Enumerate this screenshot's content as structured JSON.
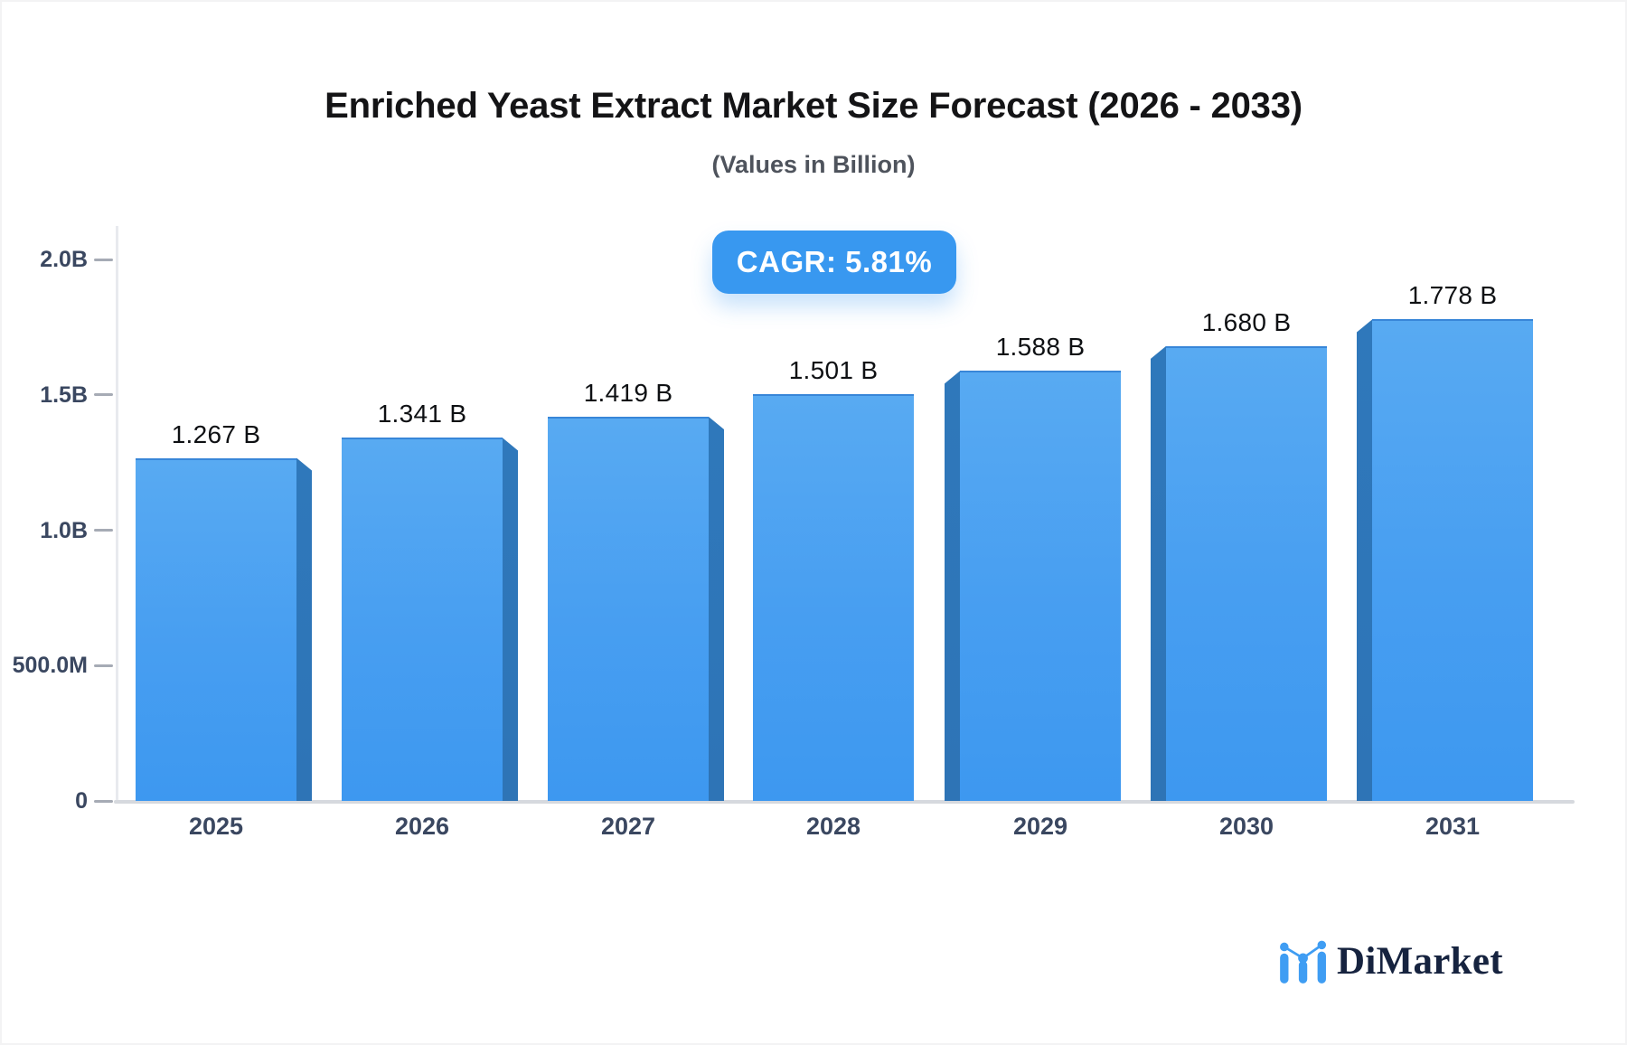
{
  "header": {
    "title": "Enriched Yeast Extract Market Size Forecast (2026 - 2033)",
    "subtitle": "(Values in Billion)",
    "cagr_label": "CAGR: 5.81%"
  },
  "chart_data": {
    "type": "bar",
    "title": "Enriched Yeast Extract Market Size Forecast (2026 - 2033)",
    "subtitle": "(Values in Billion)",
    "unit": "Billion",
    "cagr_percent": 5.81,
    "categories": [
      "2025",
      "2026",
      "2027",
      "2028",
      "2029",
      "2030",
      "2031"
    ],
    "values": [
      1.267,
      1.341,
      1.419,
      1.501,
      1.588,
      1.68,
      1.778
    ],
    "value_labels": [
      "1.267 B",
      "1.341 B",
      "1.419 B",
      "1.501 B",
      "1.588 B",
      "1.680 B",
      "1.778 B"
    ],
    "ylim": [
      0,
      2.0
    ],
    "y_ticks": [
      {
        "value": 2.0,
        "label": "2.0B"
      },
      {
        "value": 1.5,
        "label": "1.5B"
      },
      {
        "value": 1.0,
        "label": "1.0B"
      },
      {
        "value": 0.5,
        "label": "500.0M"
      },
      {
        "value": 0.0,
        "label": "0"
      }
    ],
    "grid": false,
    "legend": false,
    "xlabel": "",
    "ylabel": ""
  },
  "footer": {
    "brand": "DiMarket"
  },
  "colors": {
    "bar_front_top": "#58aaf2",
    "bar_front_bottom": "#3d98f0",
    "bar_side": "#2e74b6",
    "badge_bg": "#3898f0",
    "badge_text": "#ffffff",
    "axis_text": "#3a4760",
    "value_text": "#0e1013",
    "title_text": "#141416",
    "subtitle_text": "#4e535c",
    "baseline": "#d6d9de",
    "logo_icon": "#3f9df3",
    "logo_text": "#16233f"
  }
}
